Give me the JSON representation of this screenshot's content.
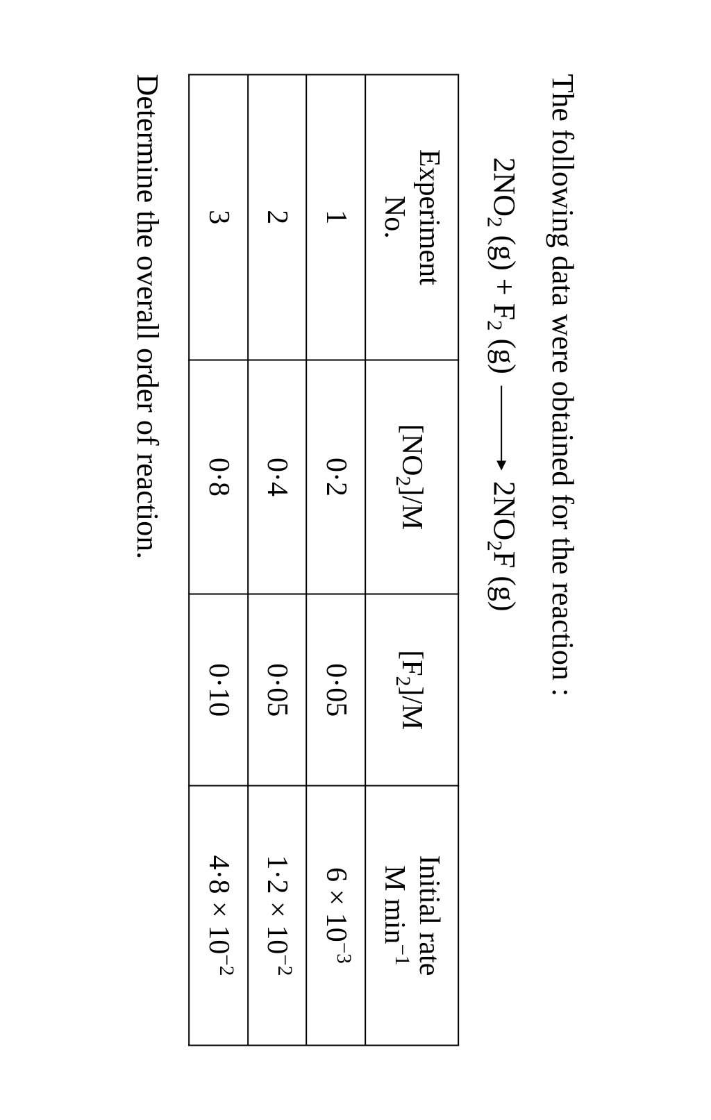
{
  "intro": "The following data were obtained for the reaction :",
  "equation": {
    "lhs1_coef": "2",
    "lhs1_base": "NO",
    "lhs1_sub": "2",
    "lhs1_state": "(g)",
    "plus": " + ",
    "lhs2_base": "F",
    "lhs2_sub": "2",
    "lhs2_state": "(g)",
    "rhs_coef": "2",
    "rhs_base": "NO",
    "rhs_sub1": "2",
    "rhs_suffix": "F",
    "rhs_state": "(g)"
  },
  "table": {
    "headers": {
      "col1_line1": "Experiment",
      "col1_line2": "No.",
      "col2_prefix": "[NO",
      "col2_sub": "2",
      "col2_suffix": "]/M",
      "col3_prefix": "[F",
      "col3_sub": "2",
      "col3_suffix": "]/M",
      "col4_line1": "Initial rate",
      "col4_line2_prefix": "M min",
      "col4_line2_sup": "−1"
    },
    "rows": [
      {
        "exp": "1",
        "no2": "0·2",
        "f2": "0·05",
        "rate_base": "6 × 10",
        "rate_exp": "−3"
      },
      {
        "exp": "2",
        "no2": "0·4",
        "f2": "0·05",
        "rate_base": "1·2 × 10",
        "rate_exp": "−2"
      },
      {
        "exp": "3",
        "no2": "0·8",
        "f2": "0·10",
        "rate_base": "4·8 × 10",
        "rate_exp": "−2"
      }
    ]
  },
  "conclusion": "Determine the overall order of reaction.",
  "styling": {
    "font_family": "Times New Roman",
    "text_color": "#000000",
    "background_color": "#ffffff",
    "border_color": "#000000",
    "border_width": 2,
    "body_fontsize": 44,
    "table_fontsize": 42,
    "rotation_deg": 90
  }
}
